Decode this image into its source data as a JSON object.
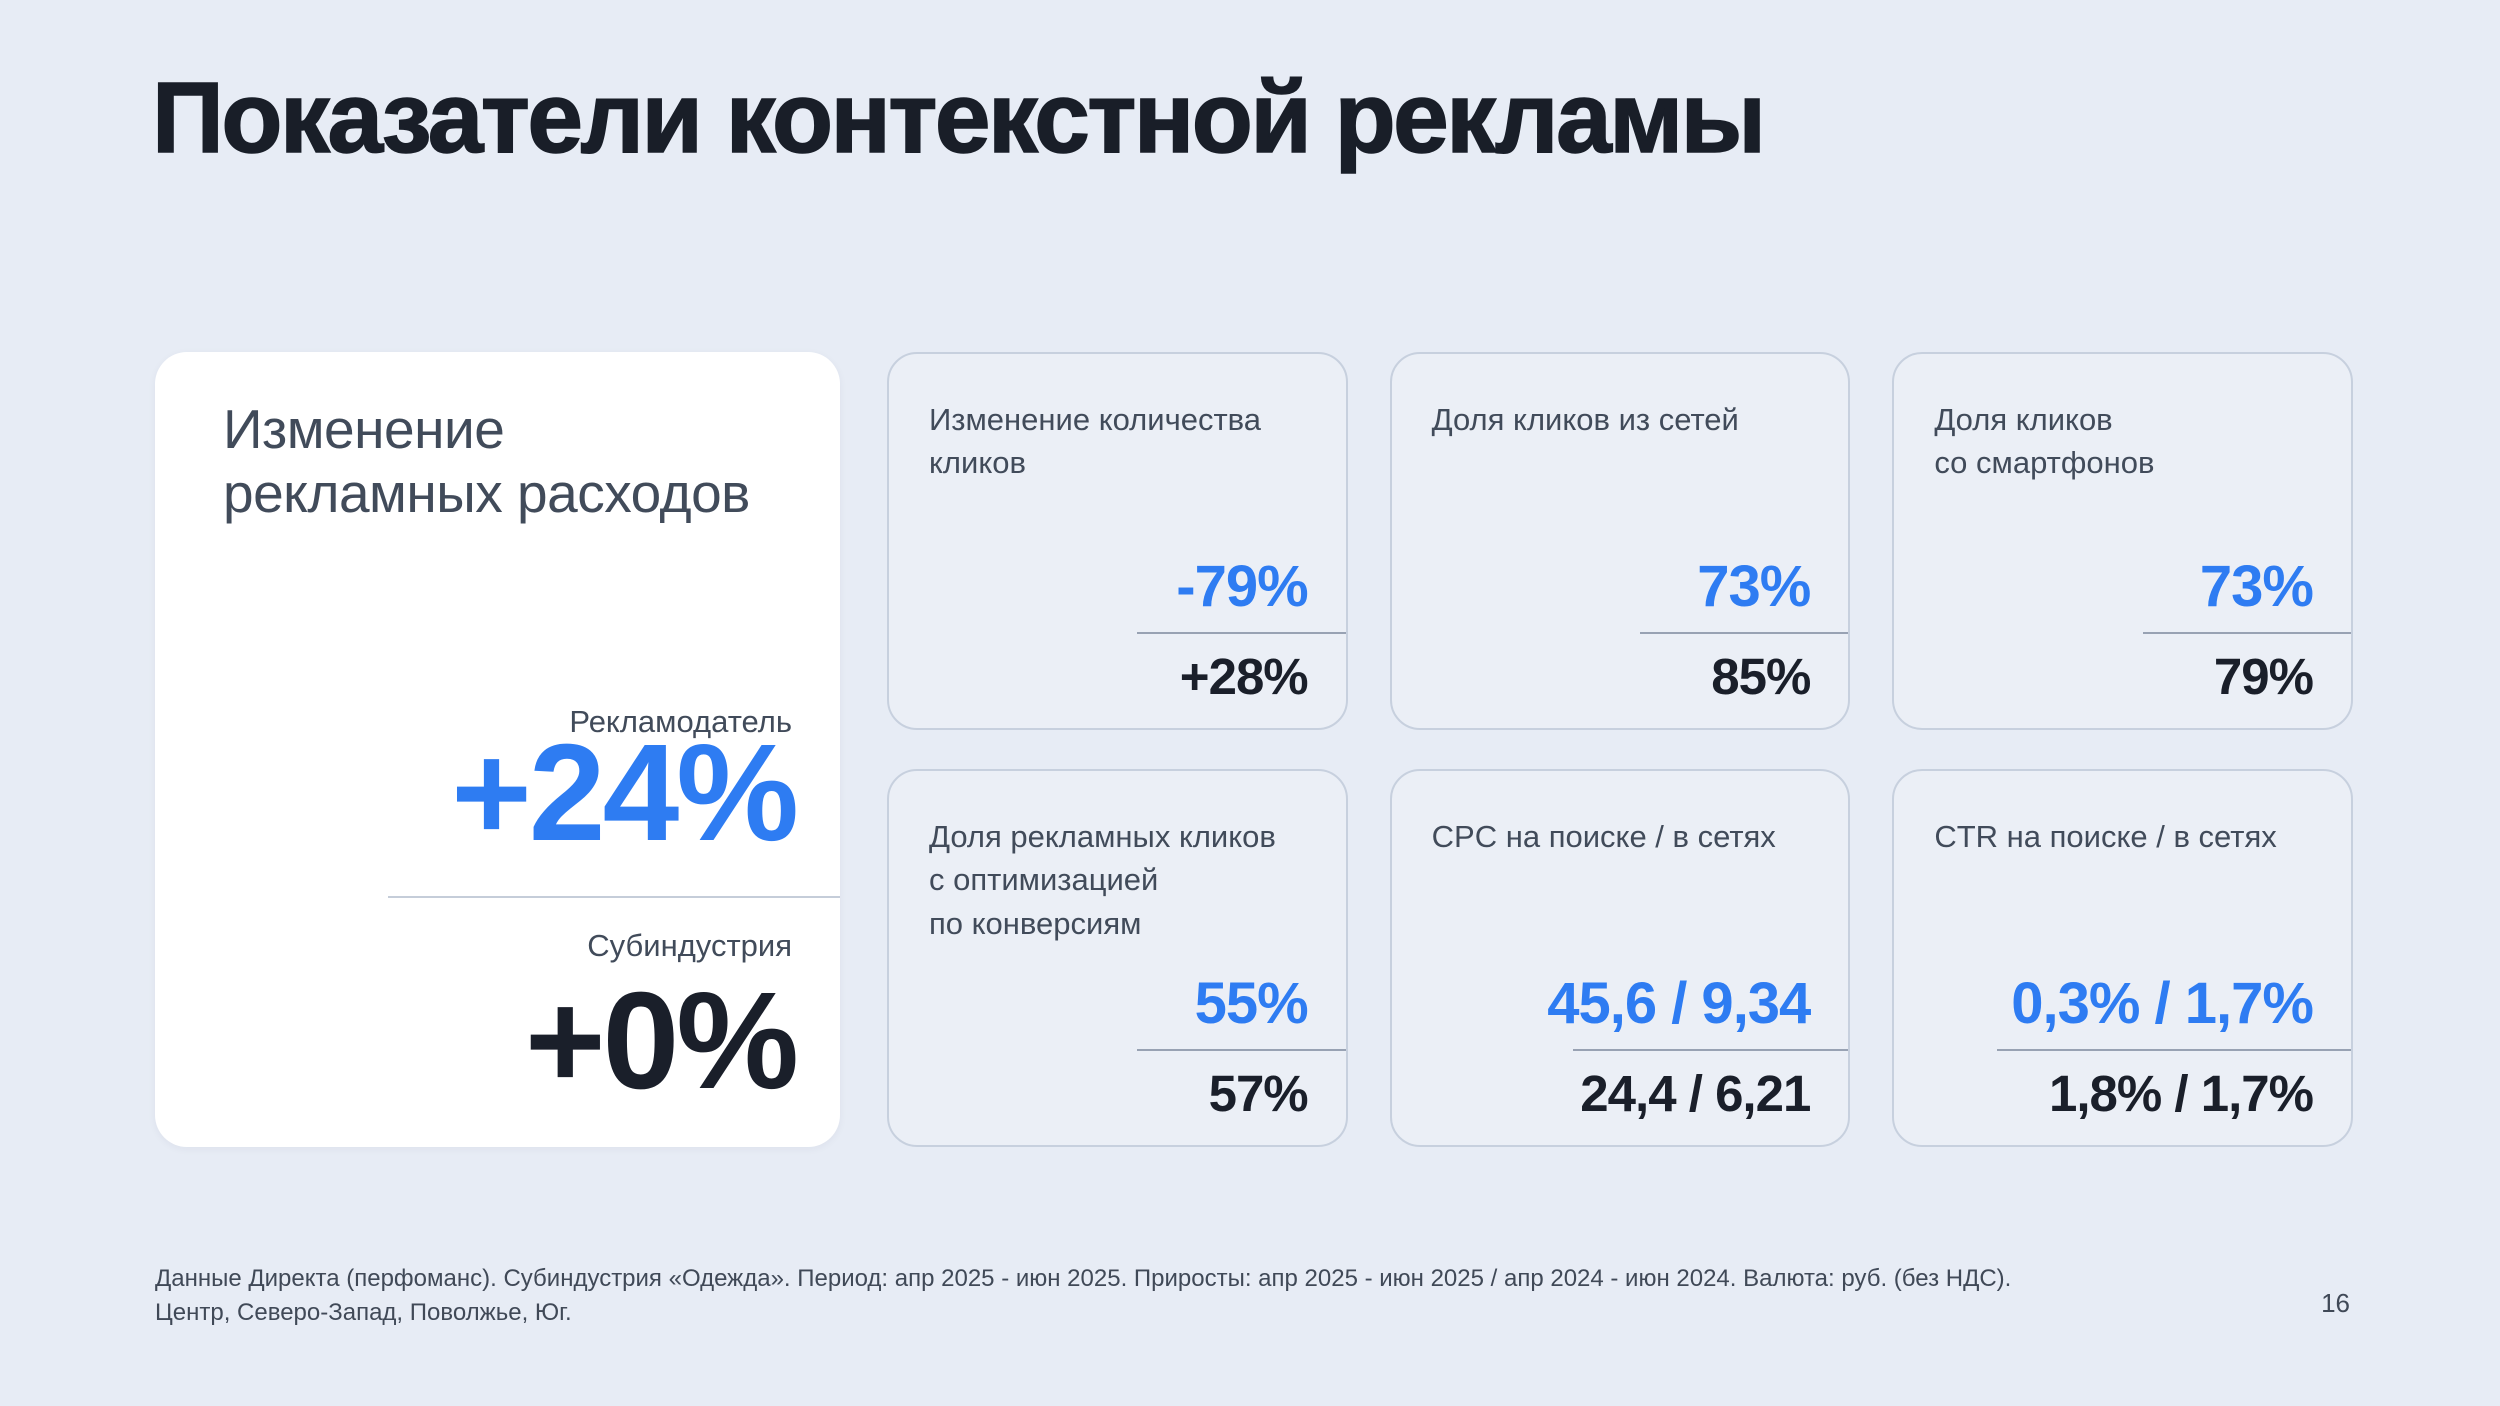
{
  "slide": {
    "title": "Показатели контекстной рекламы",
    "page_number": "16",
    "footer": {
      "line1": "Данные Директа (перфоманс). Субиндустрия «Одежда». Период: апр 2025 - июн 2025. Приросты: апр 2025 - июн 2025 / апр 2024 - июн 2024. Валюта: руб. (без НДС).",
      "line2": "Центр, Северо-Запад, Поволжье, Юг."
    }
  },
  "main_card": {
    "title": "Изменение\nрекламных расходов",
    "advertiser": {
      "label": "Рекламодатель",
      "value": "+24%"
    },
    "subindustry": {
      "label": "Субиндустрия",
      "value": "+0%"
    }
  },
  "metric_cards": [
    {
      "label": "Изменение количества\nкликов",
      "current": "-79%",
      "previous": "+28%"
    },
    {
      "label": "Доля кликов из сетей",
      "current": "73%",
      "previous": "85%"
    },
    {
      "label": "Доля кликов\nсо смартфонов",
      "current": "73%",
      "previous": "79%"
    },
    {
      "label": "Доля рекламных кликов\nс оптимизацией\nпо конверсиям",
      "current": "55%",
      "previous": "57%"
    },
    {
      "label": "CPC на поиске / в сетях",
      "current": "45,6 / 9,34",
      "previous": "24,4 / 6,21"
    },
    {
      "label": "CTR на поиске / в сетях",
      "current": "0,3% / 1,7%",
      "previous": "1,8% / 1,7%"
    }
  ],
  "colors": {
    "background": "#E7ECF5",
    "accent_blue": "#2E7CF2",
    "dark_value": "#1A1F2A",
    "slate_text": "#414B5A",
    "card_border": "#C7D0DE"
  }
}
